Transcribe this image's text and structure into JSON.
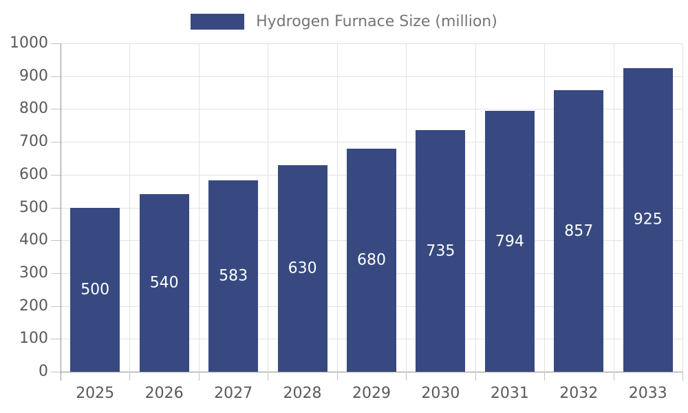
{
  "chart_data": {
    "type": "bar",
    "title": "Hydrogen Furnace Size (million)",
    "categories": [
      "2025",
      "2026",
      "2027",
      "2028",
      "2029",
      "2030",
      "2031",
      "2032",
      "2033"
    ],
    "values": [
      500,
      540,
      583,
      630,
      680,
      735,
      794,
      857,
      925
    ],
    "series": [
      {
        "name": "Hydrogen Furnace Size (million)",
        "values": [
          500,
          540,
          583,
          630,
          680,
          735,
          794,
          857,
          925
        ]
      }
    ],
    "xlabel": "",
    "ylabel": "",
    "ylim": [
      0,
      1000
    ],
    "ytick_step": 100,
    "yticks": [
      0,
      100,
      200,
      300,
      400,
      500,
      600,
      700,
      800,
      900,
      1000
    ],
    "grid": "horizontal and vertical light gridlines",
    "legend_position": "top-center",
    "value_labels": "white, centered inside bars",
    "colors": {
      "bar": "#374980",
      "bar_value_text": "#ffffff",
      "axis_text": "#595959",
      "legend_text": "#757575",
      "grid": "#e2e2e2",
      "axis_line": "#8f8f8f",
      "tick_mark": "#c3c3c3",
      "background": "#ffffff"
    }
  }
}
